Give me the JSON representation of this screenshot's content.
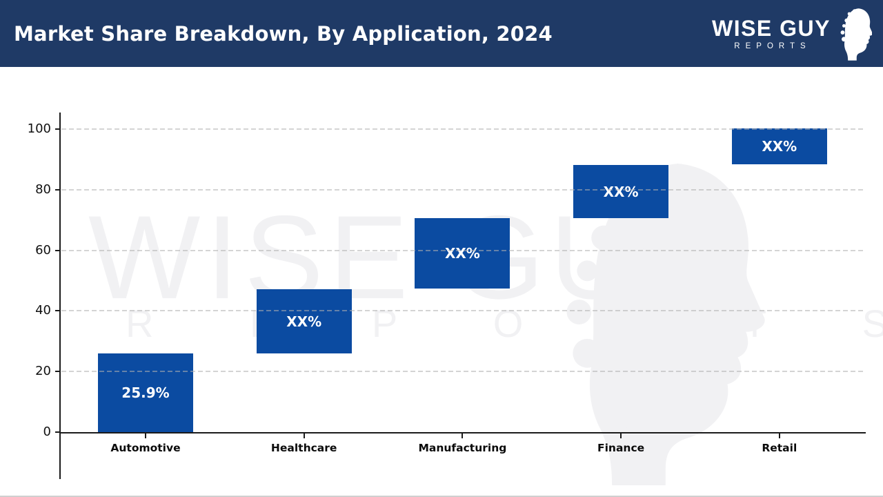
{
  "header": {
    "title": "Market Share Breakdown, By Application, 2024",
    "bg_color": "#1f3a66",
    "logo": {
      "line1": "WISE GUY",
      "line2": "REPORTS"
    }
  },
  "watermark": {
    "line1": "WISE GUY",
    "line2": "R E P O R T S"
  },
  "chart_data": {
    "type": "waterfall-bar",
    "title": "Market Share Breakdown, By Application, 2024",
    "categories": [
      "Automotive",
      "Healthcare",
      "Manufacturing",
      "Finance",
      "Retail"
    ],
    "segments": [
      {
        "label": "Automotive",
        "start": 0,
        "end": 25.9,
        "display": "25.9%"
      },
      {
        "label": "Healthcare",
        "start": 25.9,
        "end": 47.1,
        "display": "XX%"
      },
      {
        "label": "Manufacturing",
        "start": 47.3,
        "end": 70.6,
        "display": "XX%"
      },
      {
        "label": "Finance",
        "start": 70.6,
        "end": 88.1,
        "display": "XX%"
      },
      {
        "label": "Retail",
        "start": 88.3,
        "end": 100.2,
        "display": "XX%"
      }
    ],
    "yticks": [
      0,
      20,
      40,
      60,
      80,
      100
    ],
    "ylim": [
      0,
      105.5
    ],
    "bar_color": "#0b4ba1",
    "grid": "dashed-horizontal",
    "legend": "none",
    "xlabel": "",
    "ylabel": ""
  }
}
